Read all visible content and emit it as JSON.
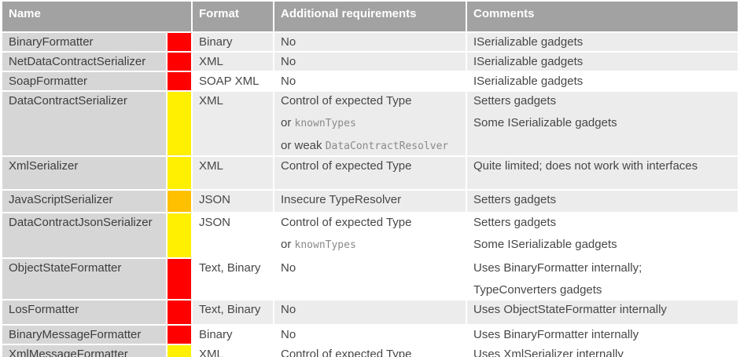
{
  "table": {
    "columns": [
      {
        "label": "Name"
      },
      {
        "label": "Format"
      },
      {
        "label": "Additional requirements"
      },
      {
        "label": "Comments"
      }
    ],
    "status_colors": {
      "red": "#fe0000",
      "yellow": "#ffef00",
      "orange": "#ffc000"
    },
    "rows": [
      {
        "name": "BinaryFormatter",
        "risk": "red",
        "format": "Binary",
        "requirements": [
          [
            "No"
          ]
        ],
        "comments": [
          [
            "ISerializable gadgets"
          ]
        ]
      },
      {
        "name": "NetDataContractSerializer",
        "risk": "red",
        "format": "XML",
        "requirements": [
          [
            "No"
          ]
        ],
        "comments": [
          [
            "ISerializable gadgets"
          ]
        ]
      },
      {
        "name": "SoapFormatter",
        "risk": "red",
        "format": "SOAP XML",
        "requirements": [
          [
            "No"
          ]
        ],
        "comments": [
          [
            "ISerializable gadgets"
          ]
        ]
      },
      {
        "name": "DataContractSerializer",
        "risk": "yellow",
        "format": "XML",
        "requirements": [
          [
            "Control of expected Type"
          ],
          [
            "or ",
            {
              "mono": "knownTypes"
            }
          ],
          [
            "or weak ",
            {
              "mono": "DataContractResolver"
            }
          ]
        ],
        "comments": [
          [
            "Setters gadgets"
          ],
          [
            "Some ISerializable gadgets"
          ]
        ]
      },
      {
        "name": "XmlSerializer",
        "risk": "yellow",
        "format": "XML",
        "requirements": [
          [
            "Control of expected Type"
          ]
        ],
        "comments": [
          [
            "Quite limited; does not work with interfaces"
          ]
        ]
      },
      {
        "name": "JavaScriptSerializer",
        "risk": "orange",
        "format": "JSON",
        "requirements": [
          [
            "Insecure TypeResolver"
          ]
        ],
        "comments": [
          [
            "Setters gadgets"
          ]
        ]
      },
      {
        "name": "DataContractJsonSerializer",
        "risk": "yellow",
        "format": "JSON",
        "requirements": [
          [
            "Control of expected Type"
          ],
          [
            "or ",
            {
              "mono": "knownTypes"
            }
          ]
        ],
        "comments": [
          [
            "Setters gadgets"
          ],
          [
            "Some ISerializable gadgets"
          ]
        ]
      },
      {
        "name": "ObjectStateFormatter",
        "risk": "red",
        "format": "Text, Binary",
        "requirements": [
          [
            "No"
          ]
        ],
        "comments": [
          [
            "Uses BinaryFormatter internally;"
          ],
          [
            "TypeConverters gadgets"
          ]
        ]
      },
      {
        "name": "LosFormatter",
        "risk": "red",
        "format": "Text, Binary",
        "requirements": [
          [
            "No"
          ]
        ],
        "comments": [
          [
            "Uses ObjectStateFormatter internally"
          ]
        ]
      },
      {
        "name": "BinaryMessageFormatter",
        "risk": "red",
        "format": "Binary",
        "requirements": [
          [
            "No"
          ]
        ],
        "comments": [
          [
            "Uses BinaryFormatter internally"
          ]
        ]
      },
      {
        "name": "XmlMessageFormatter",
        "risk": "yellow",
        "format": "XML",
        "requirements": [
          [
            "Control of expected Type"
          ]
        ],
        "comments": [
          [
            "Uses XmlSerializer internally"
          ]
        ]
      }
    ]
  }
}
